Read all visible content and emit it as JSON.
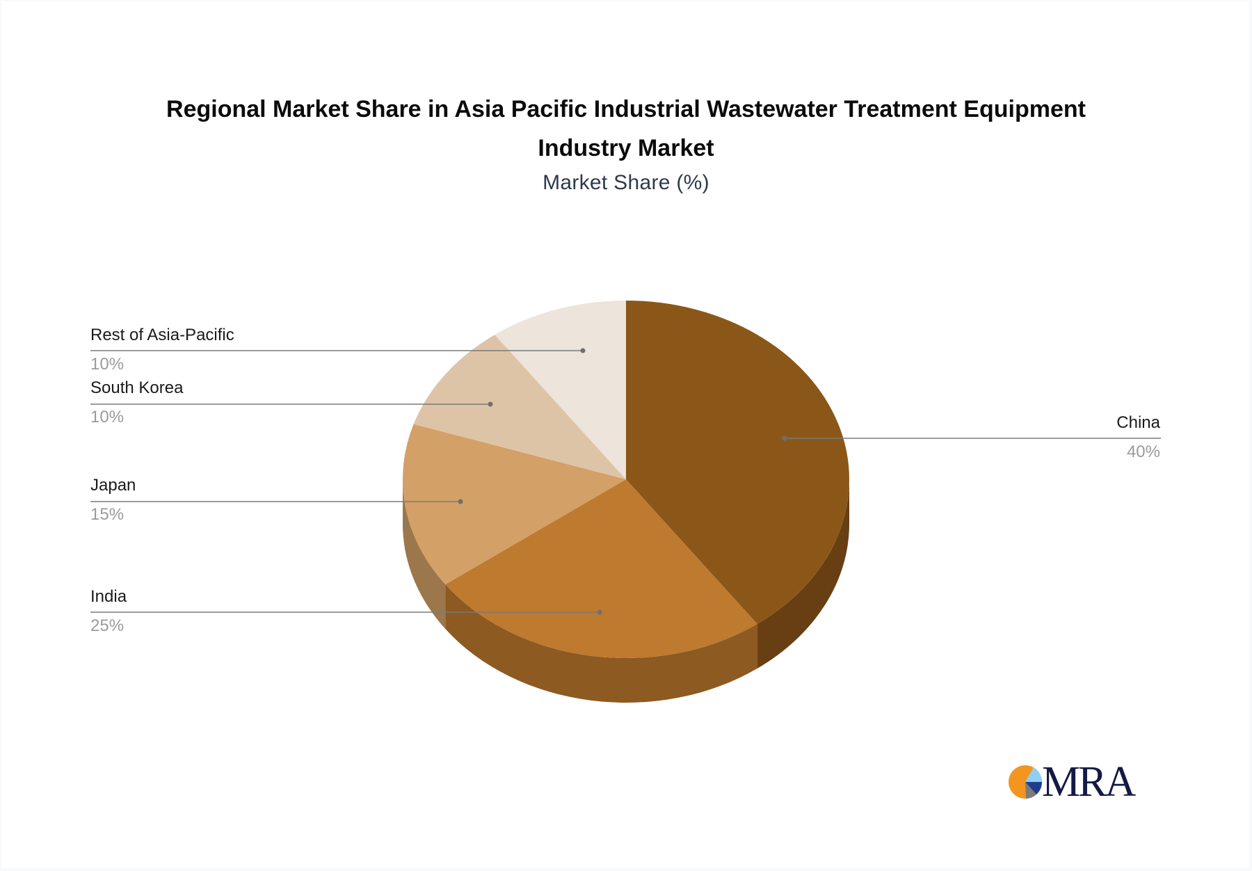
{
  "title": {
    "line1": "Regional Market Share in Asia Pacific Industrial Wastewater Treatment Equipment",
    "line2": "Industry Market",
    "subtitle": "Market Share (%)"
  },
  "chart_data": {
    "type": "pie",
    "style": "3d",
    "title": "Regional Market Share in Asia Pacific Industrial Wastewater Treatment Equipment Industry Market",
    "subtitle": "Market Share (%)",
    "categories": [
      "China",
      "India",
      "Japan",
      "South Korea",
      "Rest of Asia-Pacific"
    ],
    "values": [
      40,
      25,
      15,
      10,
      10
    ],
    "unit": "%",
    "colors": [
      "#8B5719",
      "#BE7A2F",
      "#D3A067",
      "#DEC4A6",
      "#EDE4DB"
    ],
    "side_colors": [
      "#673F12",
      "#8D5A22",
      "#9C774C",
      "#A8927A",
      "#B3A99F"
    ],
    "legend": "callout-labels"
  },
  "labels": [
    {
      "name": "China",
      "pct": "40%"
    },
    {
      "name": "India",
      "pct": "25%"
    },
    {
      "name": "Japan",
      "pct": "15%"
    },
    {
      "name": "South Korea",
      "pct": "10%"
    },
    {
      "name": "Rest of Asia-Pacific",
      "pct": "10%"
    }
  ],
  "logo": {
    "text": "MRA"
  }
}
